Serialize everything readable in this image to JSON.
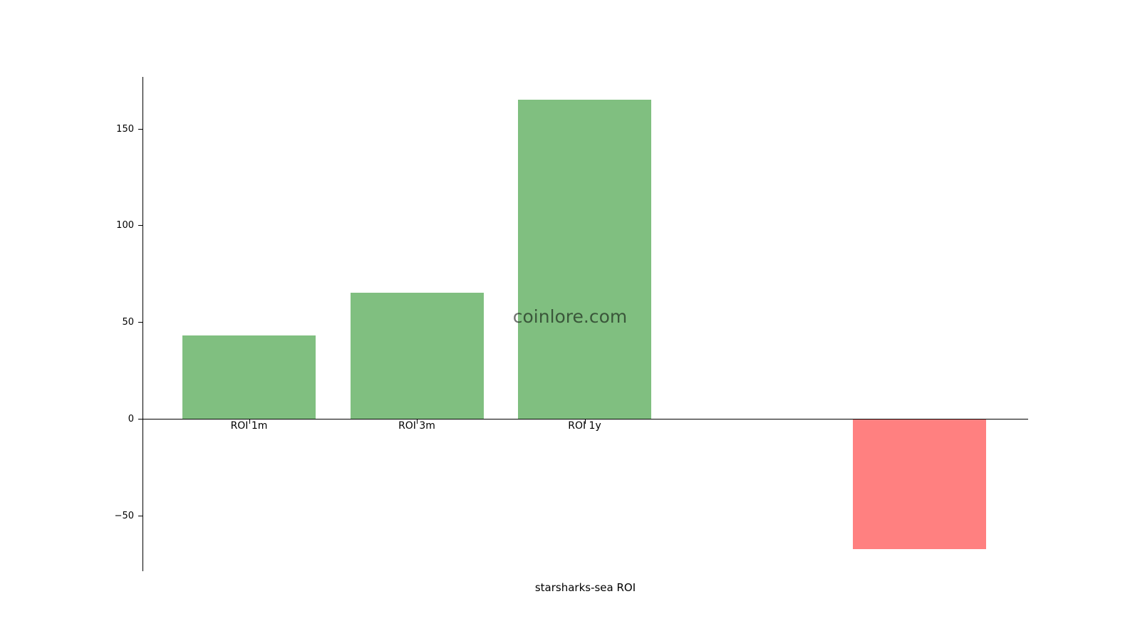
{
  "page": {
    "background": "#ffffff"
  },
  "watermark": {
    "text": "coinlore.com"
  },
  "chart_data": {
    "type": "bar",
    "title": "",
    "xlabel": "starsharks-sea ROI",
    "ylabel": "",
    "categories": [
      "ROI 1m",
      "ROI 3m",
      "ROI 1y",
      ""
    ],
    "values": [
      43,
      65,
      165,
      -67
    ],
    "bar_colors": [
      "#80bf80",
      "#80bf80",
      "#80bf80",
      "#ff8080"
    ],
    "positive_color": "#80bf80",
    "negative_color": "#ff8080",
    "yticks": [
      150,
      100,
      50,
      0,
      -50
    ],
    "ylim": [
      -79,
      177
    ],
    "grid": false,
    "legend_position": "none",
    "watermark": "coinlore.com",
    "axis_color": "#000000"
  }
}
